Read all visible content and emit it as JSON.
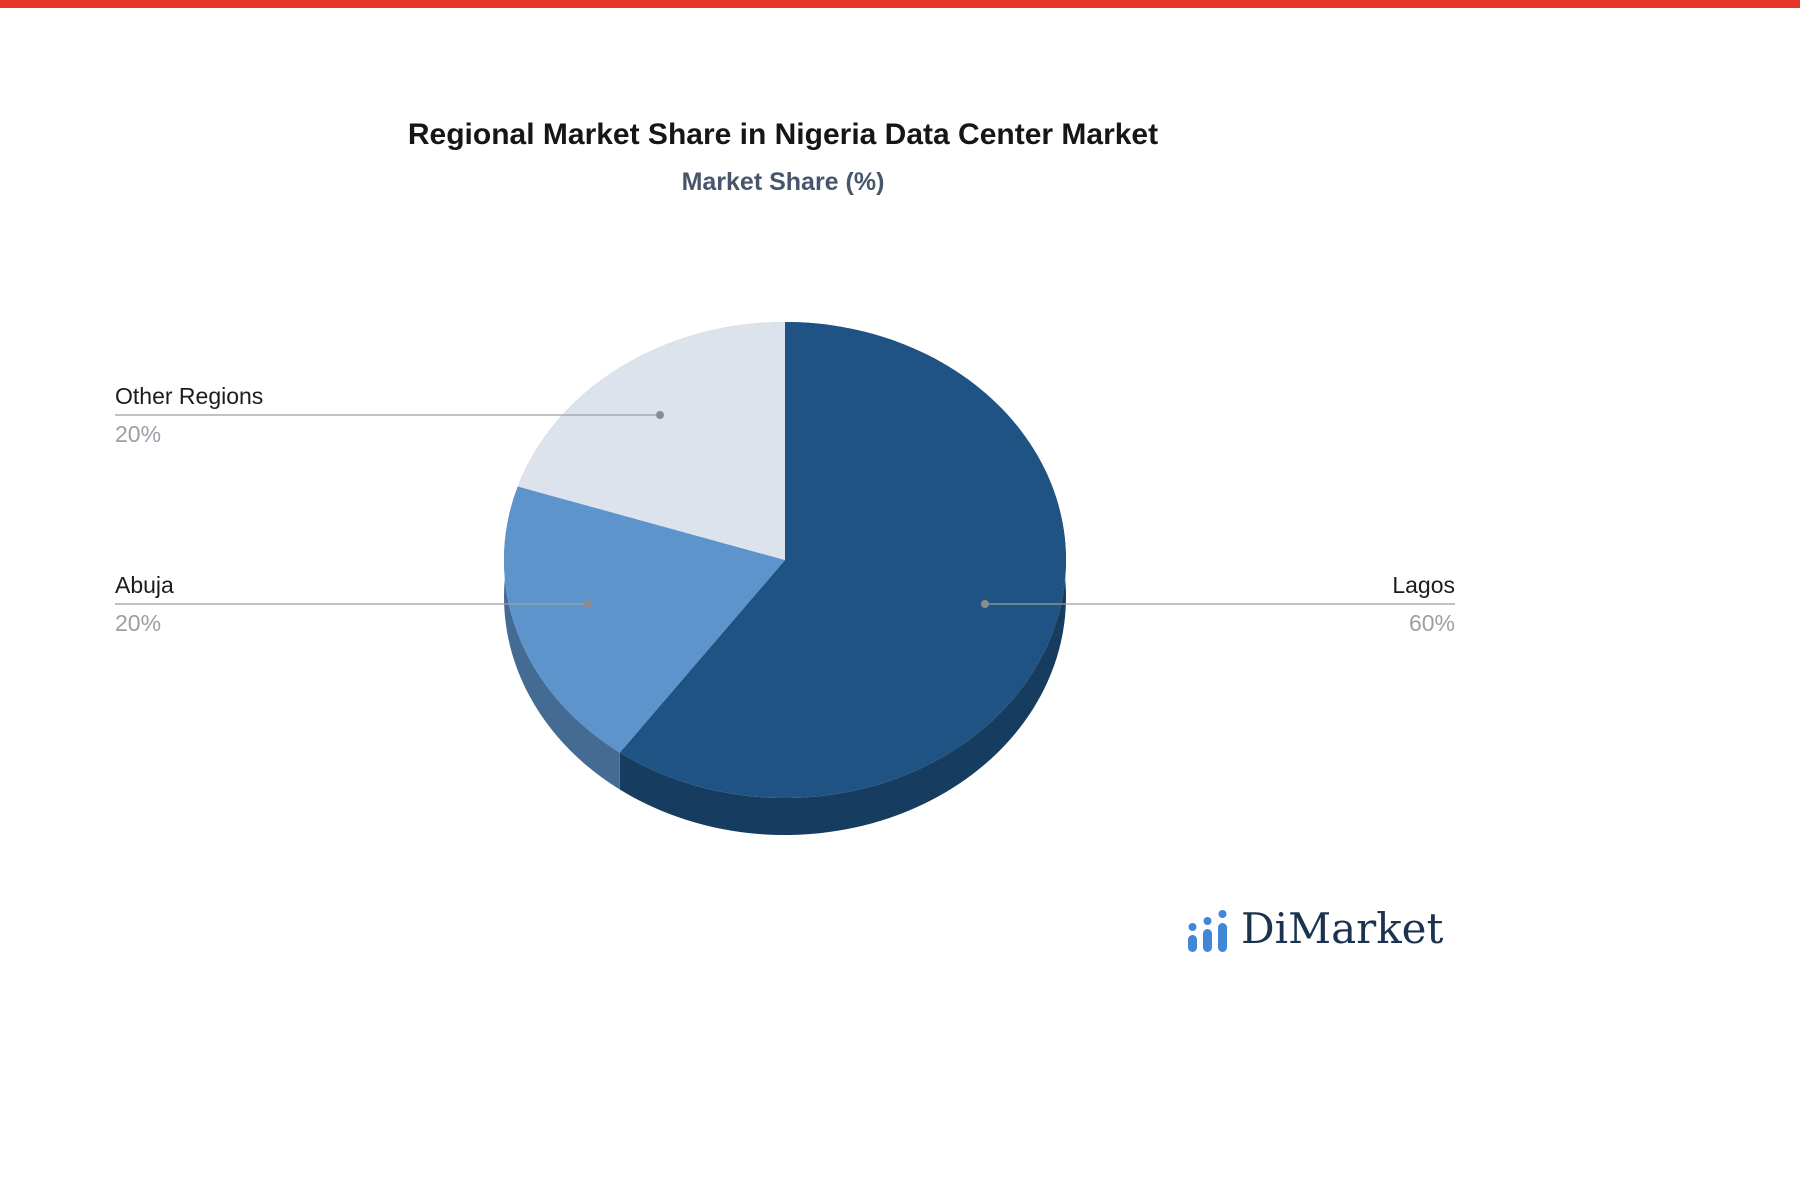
{
  "page": {
    "background": "#ffffff",
    "top_bar_color": "#e8362b"
  },
  "header": {
    "title": "Regional Market Share in Nigeria Data Center Market",
    "subtitle": "Market Share (%)"
  },
  "chart_data": {
    "type": "pie",
    "title": "Regional Market Share in Nigeria Data Center Market",
    "subtitle": "Market Share (%)",
    "unit": "%",
    "effect": "3d",
    "start_angle_deg": -90,
    "direction": "clockwise",
    "legend_position": "none",
    "labels_style": "outside-leader-lines",
    "slices": [
      {
        "label": "Lagos",
        "value": 60,
        "display": "60%",
        "color": "#1f5384"
      },
      {
        "label": "Abuja",
        "value": 20,
        "display": "20%",
        "color": "#5e94cc"
      },
      {
        "label": "Other Regions",
        "value": 20,
        "display": "20%",
        "color": "#dde3ed"
      }
    ]
  },
  "branding": {
    "name": "DiMarket",
    "icon": "bar-chart-logo-icon",
    "text_color": "#1c3350",
    "icon_color": "#4287d6"
  }
}
